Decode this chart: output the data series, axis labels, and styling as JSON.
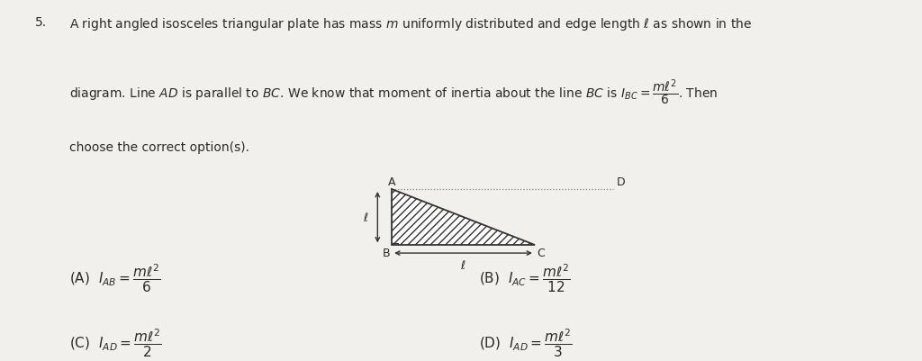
{
  "bg_color": "#f2f0ed",
  "text_color": "#2a2a2a",
  "question_number": "5.",
  "q_line1": "A right angled isosceles triangular plate has mass $m$ uniformly distributed and edge length $\\ell$ as shown in the",
  "q_line2": "diagram. Line $AD$ is parallel to $BC$. We know that moment of inertia about the line $BC$ is $I_{BC} = \\dfrac{m\\ell^2}{6}$. Then",
  "q_line3": "choose the correct option(s).",
  "opt_A": "(A)  $I_{AB} = \\dfrac{m\\ell^2}{6}$",
  "opt_B": "(B)  $I_{AC} = \\dfrac{m\\ell^2}{12}$",
  "opt_C": "(C)  $I_{AD} = \\dfrac{m\\ell^2}{2}$",
  "opt_D": "(D)  $I_{AD} = \\dfrac{m\\ell^2}{3}$",
  "tri_face": "white",
  "tri_edge": "#333333",
  "tri_hatch": "////",
  "dot_line_color": "#888888",
  "arrow_color": "#333333",
  "diagram_Bx": 0.425,
  "diagram_By": 0.32,
  "diagram_side": 0.155
}
